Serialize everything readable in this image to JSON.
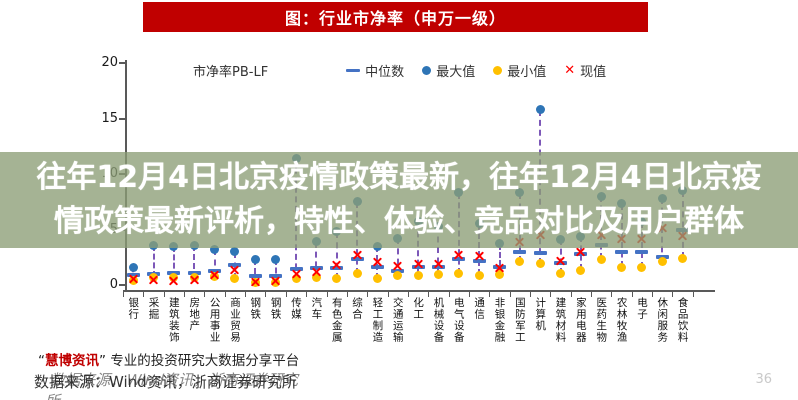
{
  "banner": {
    "title": "图：行业市净率（申万一级）",
    "bg": "#c00000"
  },
  "overlay": {
    "line1": "往年12月4日北京疫情政策最新，往年12月4日北京疫",
    "line2": "情政策最新评析，特性、体验、竞品对比及用户群体",
    "bg_rgba": "rgba(140,158,118,0.78)"
  },
  "footer": {
    "quote_open": "“",
    "brand": "慧博资讯",
    "quote_close": "”",
    "tagline": " 专业的投资研究大数据分享平台",
    "source": "数据来源：Wind资讯，浙商证券研究所"
  },
  "page_number": "36",
  "chart_data": {
    "type": "scatter",
    "title": "图：行业市净率（申万一级）",
    "axis_label": "市净率PB-LF",
    "ylabel": "市净率PB-LF",
    "xlabel": "",
    "ylim": [
      0,
      20
    ],
    "yticks": [
      0,
      5,
      10,
      15,
      20
    ],
    "grid": false,
    "legend_position": "top",
    "range_line_color": "#7d58b8",
    "categories": [
      "银行",
      "采掘",
      "建筑装饰",
      "房地产",
      "公用事业",
      "商业贸易",
      "钢铁",
      "钢铁",
      "传媒",
      "汽车",
      "有色金属",
      "综合",
      "轻工制造",
      "交通运输",
      "化工",
      "机械设备",
      "电气设备",
      "通信",
      "非银金融",
      "国防军工",
      "计算机",
      "建筑材料",
      "家用电器",
      "医药生物",
      "农林牧渔",
      "电子",
      "休闲服务",
      "食品饮料"
    ],
    "series": [
      {
        "name": "中位数",
        "marker": "dash",
        "color": "#4472c4",
        "values": [
          0.9,
          1.0,
          1.1,
          1.1,
          1.3,
          1.8,
          0.8,
          0.8,
          1.4,
          1.5,
          1.5,
          2.3,
          1.6,
          1.3,
          1.6,
          1.6,
          2.3,
          2.2,
          1.6,
          3.0,
          2.9,
          2.0,
          2.8,
          3.6,
          3.0,
          3.0,
          2.5,
          5.0
        ]
      },
      {
        "name": "最大值",
        "marker": "circle",
        "color": "#2e75b6",
        "values": [
          1.6,
          3.6,
          3.5,
          3.6,
          3.2,
          3.0,
          2.3,
          2.3,
          11.4,
          3.9,
          4.8,
          7.5,
          3.5,
          4.2,
          5.7,
          5.3,
          8.3,
          5.5,
          3.7,
          8.3,
          15.8,
          4.1,
          4.4,
          8.0,
          7.3,
          5.7,
          7.8,
          8.5
        ]
      },
      {
        "name": "最小值",
        "marker": "circle",
        "color": "#ffc000",
        "values": [
          0.4,
          0.7,
          0.7,
          0.65,
          0.8,
          0.55,
          0.2,
          0.25,
          0.55,
          0.7,
          0.55,
          1.0,
          0.55,
          0.9,
          0.9,
          0.95,
          1.0,
          0.9,
          0.95,
          2.1,
          1.9,
          1.0,
          1.35,
          2.3,
          1.6,
          1.55,
          2.1,
          2.4
        ]
      },
      {
        "name": "现值",
        "marker": "x",
        "color": "#ff0000",
        "values": [
          0.5,
          0.45,
          0.4,
          0.45,
          0.9,
          1.35,
          0.3,
          0.35,
          1.0,
          1.2,
          1.8,
          2.7,
          2.1,
          1.7,
          1.9,
          1.9,
          2.7,
          2.6,
          1.5,
          3.9,
          4.5,
          2.2,
          3.0,
          4.5,
          4.1,
          4.1,
          5.1,
          4.4
        ]
      }
    ]
  }
}
